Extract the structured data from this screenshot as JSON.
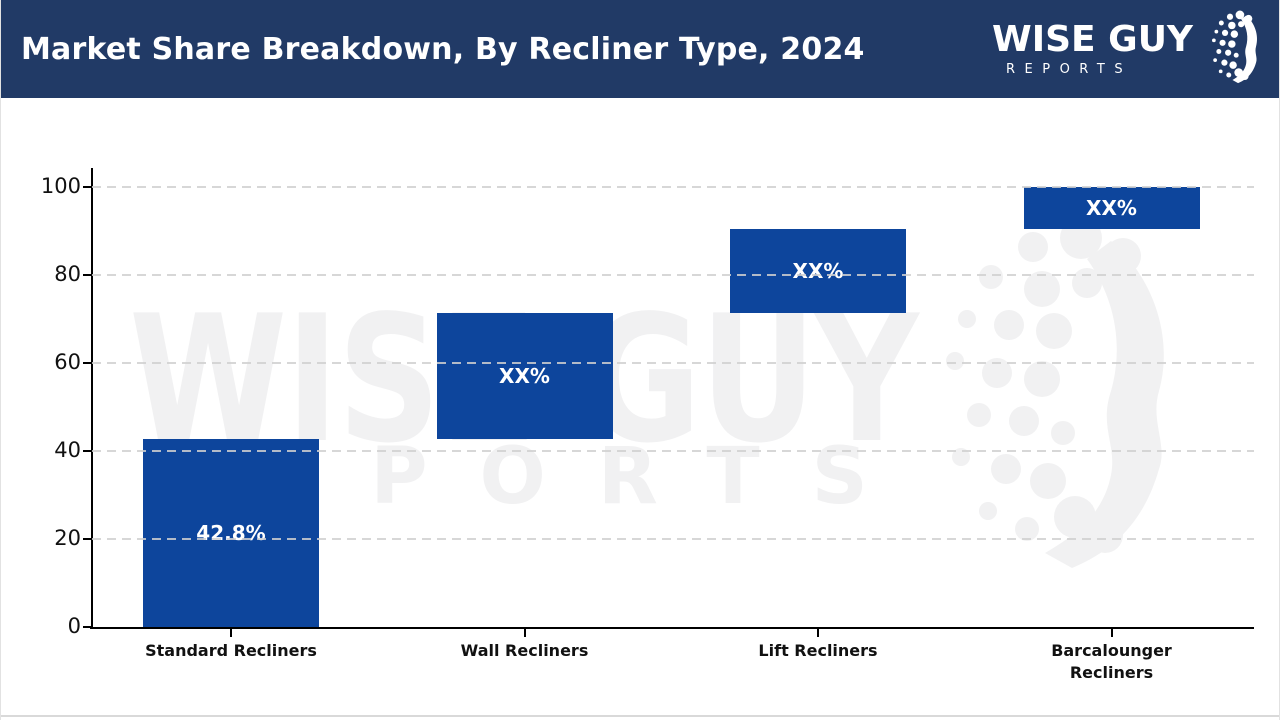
{
  "header": {
    "title": "Market Share Breakdown, By Recliner Type, 2024",
    "brand_top": "WISE GUY",
    "brand_bottom": "REPORTS",
    "bg_color": "#213a66",
    "text_color": "#ffffff"
  },
  "watermark": {
    "line1": "WISE GUY",
    "line2": "REPORTS",
    "color": "#f1f1f2"
  },
  "chart_data": {
    "type": "bar",
    "subtype": "waterfall",
    "title": "Market Share Breakdown, By Recliner Type, 2024",
    "xlabel": "",
    "ylabel": "",
    "categories": [
      "Standard Recliners",
      "Wall Recliners",
      "Lift Recliners",
      "Barcalounger Recliners"
    ],
    "series": [
      {
        "name": "Market Share (%)",
        "segments": [
          {
            "category": "Standard Recliners",
            "start": 0,
            "end": 42.8,
            "label": "42.8%"
          },
          {
            "category": "Wall Recliners",
            "start": 42.8,
            "end": 71.4,
            "label": "XX%"
          },
          {
            "category": "Lift Recliners",
            "start": 71.4,
            "end": 90.5,
            "label": "XX%"
          },
          {
            "category": "Barcalounger Recliners",
            "start": 90.5,
            "end": 100,
            "label": "XX%"
          }
        ]
      }
    ],
    "ylim": [
      0,
      105
    ],
    "yticks": [
      0,
      20,
      40,
      60,
      80,
      100
    ],
    "grid": "horizontal-dashed, drawn above bars",
    "legend": "none",
    "bar_color": "#0d459c",
    "bar_label_color": "#ffffff",
    "grid_color": "#d0d0d0",
    "axis_color": "#000000"
  }
}
